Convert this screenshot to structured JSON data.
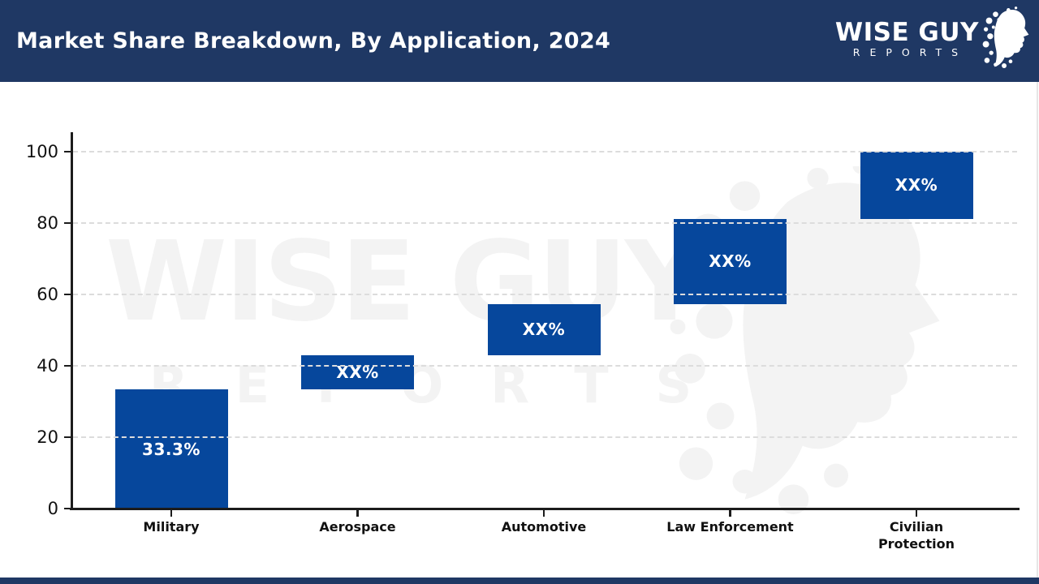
{
  "header": {
    "title": "Market Share Breakdown, By Application, 2024",
    "logo": {
      "line1": "WISE GUY",
      "line2": "REPORTS"
    }
  },
  "watermark": {
    "line1": "WISE GUY",
    "line2": "REPORTS"
  },
  "chart_data": {
    "type": "bar",
    "subtype": "waterfall-cumulative",
    "title": "Market Share Breakdown, By Application, 2024",
    "categories": [
      "Military",
      "Aerospace",
      "Automotive",
      "Law Enforcement",
      "Civilian Protection"
    ],
    "xlabel_display_lines": [
      [
        "Military"
      ],
      [
        "Aerospace"
      ],
      [
        "Automotive"
      ],
      [
        "Law Enforcement"
      ],
      [
        "Civilian",
        "Protection"
      ]
    ],
    "segments": [
      {
        "category": "Military",
        "start": 0,
        "end": 33.3,
        "label": "33.3%"
      },
      {
        "category": "Aerospace",
        "start": 33.3,
        "end": 43.0,
        "label": "XX%"
      },
      {
        "category": "Automotive",
        "start": 43.0,
        "end": 57.3,
        "label": "XX%"
      },
      {
        "category": "Law Enforcement",
        "start": 57.3,
        "end": 81.2,
        "label": "XX%"
      },
      {
        "category": "Civilian Protection",
        "start": 81.2,
        "end": 100,
        "label": "XX%"
      }
    ],
    "xlabel": "",
    "ylabel": "",
    "ylim": [
      0,
      105
    ],
    "yticks": [
      0,
      20,
      40,
      60,
      80,
      100
    ],
    "grid": "horizontal-dashed",
    "legend": "none",
    "bar_color": "#06479c",
    "value_label_color": "#ffffff",
    "accent_navy": "#1f3864"
  }
}
